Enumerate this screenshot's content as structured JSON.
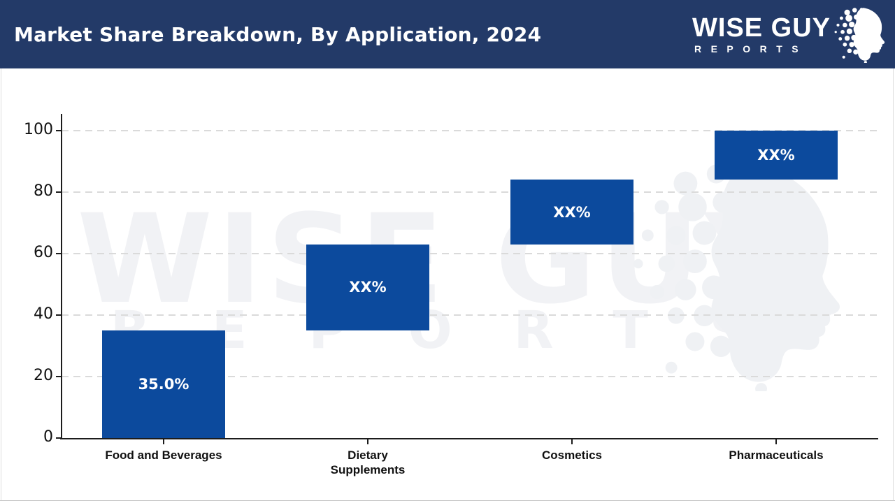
{
  "header": {
    "title": "Market Share Breakdown, By Application, 2024",
    "logo": {
      "line1": "WISE GUY",
      "line2": "REPORTS"
    }
  },
  "watermark": {
    "line1": "WISE GUY",
    "line2": "REPORTS"
  },
  "colors": {
    "header_bg": "#233a68",
    "bar_blue": "#0c4a9d",
    "bar_label_white": "#ffffff",
    "gridline_gray": "#dadada",
    "axis_black": "#1c1c1c",
    "watermark_gray": "#f1f2f5"
  },
  "chart_data": {
    "type": "bar",
    "subtype": "waterfall",
    "title": "Market Share Breakdown, By Application, 2024",
    "categories": [
      "Food and Beverages",
      "Dietary Supplements",
      "Cosmetics",
      "Pharmaceuticals"
    ],
    "tick_labels": [
      "Food and Beverages",
      "Dietary\nSupplements",
      "Cosmetics",
      "Pharmaceuticals"
    ],
    "segments": [
      {
        "category": "Food and Beverages",
        "start": 0,
        "end": 35,
        "label": "35.0%"
      },
      {
        "category": "Dietary Supplements",
        "start": 35,
        "end": 63,
        "label": "XX%"
      },
      {
        "category": "Cosmetics",
        "start": 63,
        "end": 84,
        "label": "XX%"
      },
      {
        "category": "Pharmaceuticals",
        "start": 84,
        "end": 100,
        "label": "XX%"
      }
    ],
    "xlabel": "",
    "ylabel": "",
    "ylim": [
      0,
      100
    ],
    "yticks": [
      0,
      20,
      40,
      60,
      80,
      100
    ],
    "grid": "horizontal-dashed",
    "legend": "none"
  }
}
